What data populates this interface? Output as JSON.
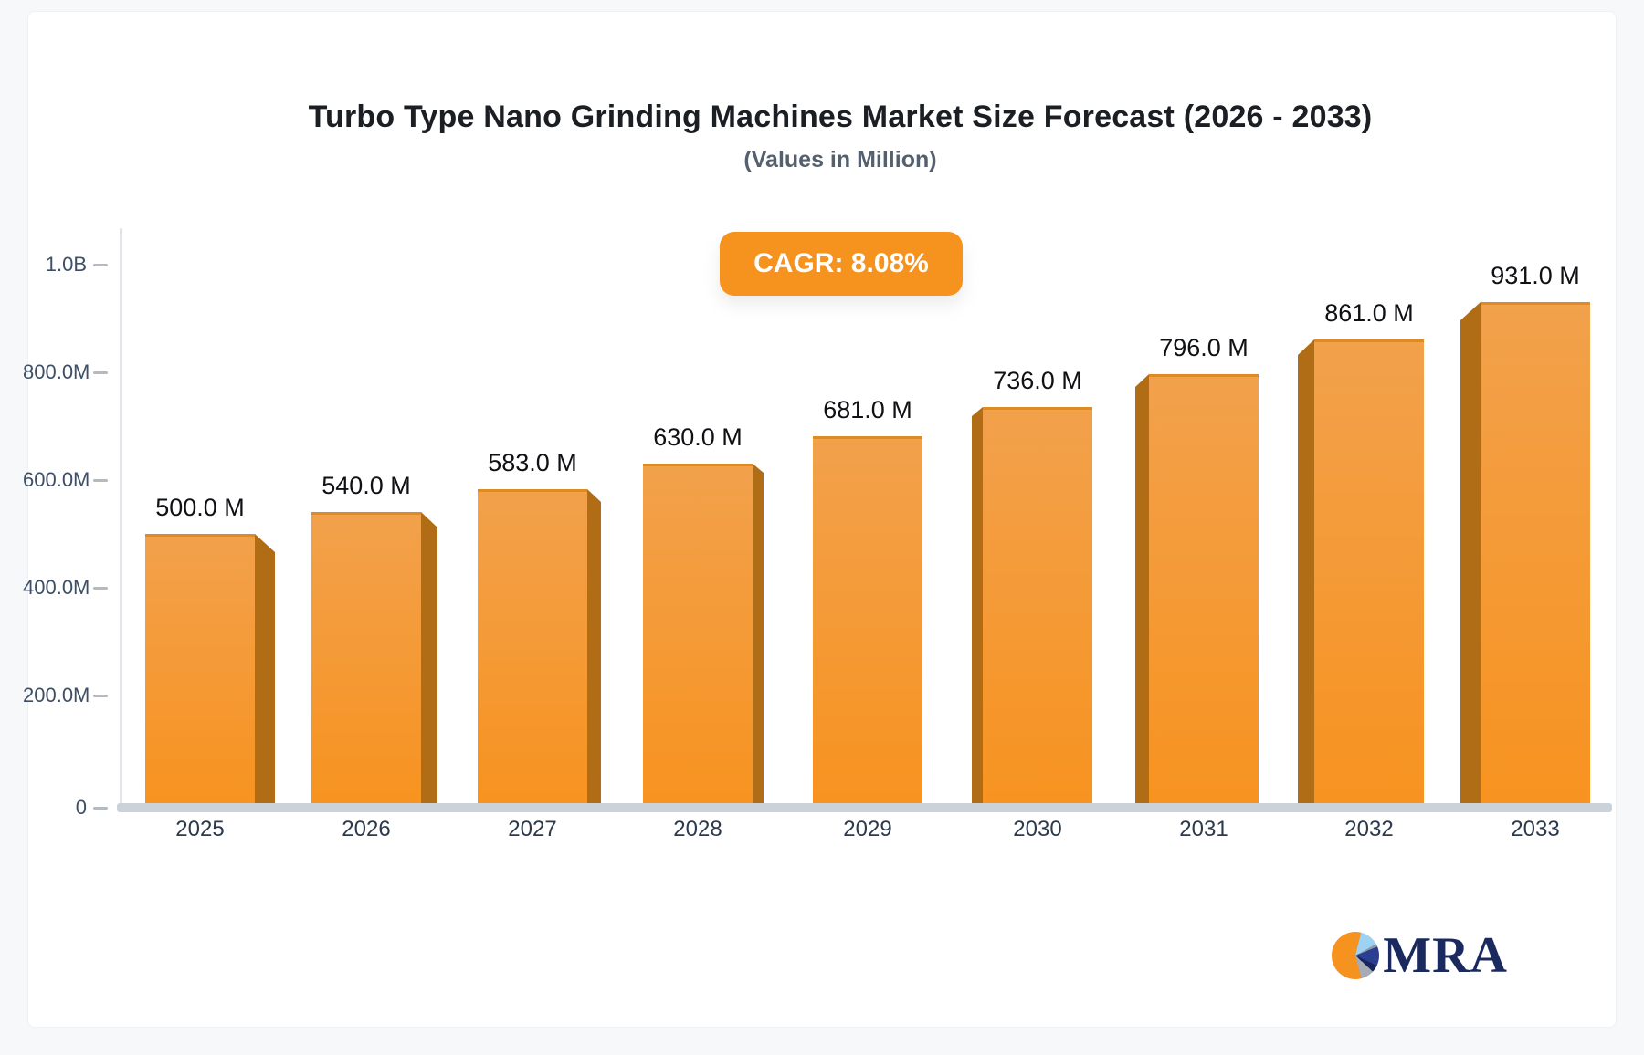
{
  "colors": {
    "accent_orange": "#f6921e",
    "bar_face_top": "#f2a14c",
    "bar_face_bottom": "#f79320",
    "bar_top_edge": "#de8a25",
    "bar_side_dark": "#b06d15",
    "axis_text": "#3e4f66",
    "x_axis_text": "#2c3a4c",
    "value_label_text": "#0f1114",
    "axis_line": "#e0e3e8",
    "baseline": "#ccd2d9",
    "tick_mark": "#b3bac2",
    "title_text": "#1b1f24",
    "subtitle_text": "#55606e",
    "badge_bg": "#f6921e",
    "badge_text": "#ffffff",
    "brand_navy": "#1b2a5e"
  },
  "brand": {
    "name": "MRA",
    "logo_icon": "pie-chart-icon"
  },
  "chart_data": {
    "type": "bar",
    "title": "Turbo Type Nano Grinding Machines Market Size Forecast (2026 - 2033)",
    "subtitle": "(Values in Million)",
    "annotation": "CAGR: 8.08%",
    "unit": "Million",
    "categories": [
      "2025",
      "2026",
      "2027",
      "2028",
      "2029",
      "2030",
      "2031",
      "2032",
      "2033"
    ],
    "values": [
      500,
      540,
      583,
      630,
      681,
      736,
      796,
      861,
      931
    ],
    "value_labels": [
      "500.0 M",
      "540.0 M",
      "583.0 M",
      "630.0 M",
      "681.0 M",
      "736.0 M",
      "796.0 M",
      "861.0 M",
      "931.0 M"
    ],
    "ylim": [
      0,
      1000
    ],
    "y_ticks": [
      {
        "label": "1.0B",
        "value": 1000
      },
      {
        "label": "800.0M",
        "value": 800
      },
      {
        "label": "600.0M",
        "value": 600
      },
      {
        "label": "400.0M",
        "value": 400
      },
      {
        "label": "200.0M",
        "value": 200
      },
      {
        "label": "0",
        "value": 0
      }
    ],
    "xlabel": "",
    "ylabel": "",
    "grid": false,
    "legend": false
  }
}
